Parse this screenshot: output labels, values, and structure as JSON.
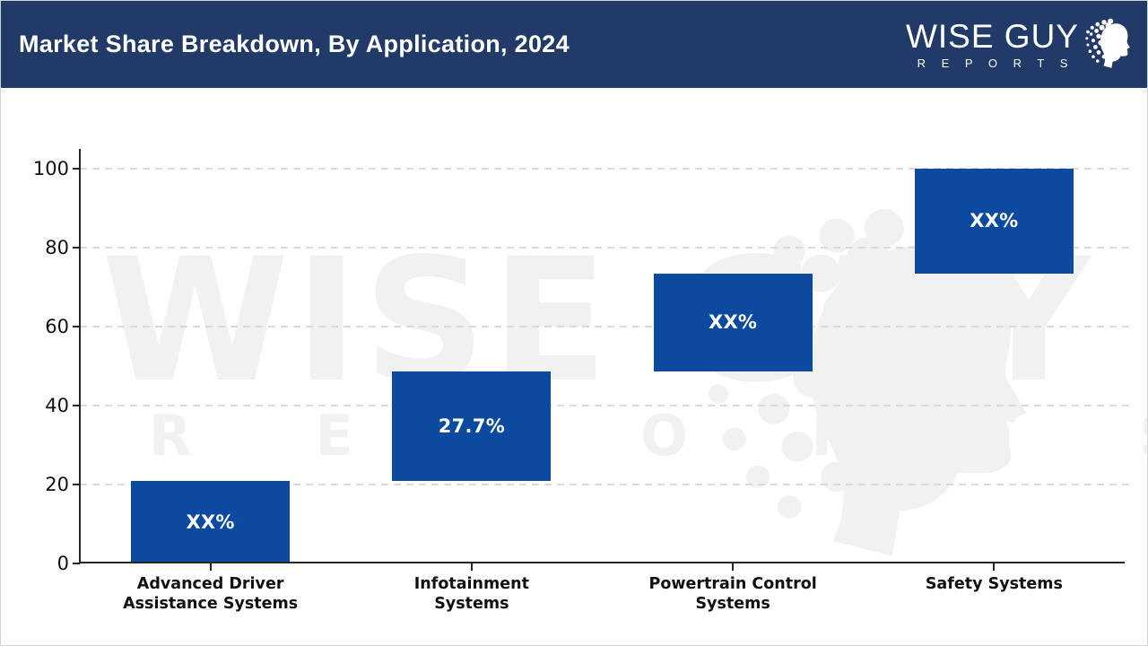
{
  "header": {
    "title": "Market Share Breakdown, By Application, 2024",
    "logo": {
      "name": "WISE GUY",
      "subname": "R E P O R T S",
      "icon": "dotted-head-profile-icon"
    }
  },
  "watermark": {
    "text": "WISE GUY",
    "subtext": "R E P O R T S",
    "icon": "dotted-head-profile-watermark"
  },
  "colors": {
    "header_bg": "#213A67",
    "header_text": "#FFFFFF",
    "bar": "#0B4A9F",
    "bar_label": "#FFFFFF",
    "grid": "#D9D9D9",
    "axis": "#262626",
    "tick_label": "#111111",
    "watermark": "#F1F1F1"
  },
  "chart_data": {
    "type": "bar",
    "subtype": "waterfall",
    "title": "Market Share Breakdown, By Application, 2024",
    "xlabel": "",
    "ylabel": "",
    "categories": [
      "Advanced Driver Assistance Systems",
      "Infotainment Systems",
      "Powertrain Control Systems",
      "Safety Systems"
    ],
    "category_lines": [
      [
        "Advanced Driver",
        "Assistance Systems"
      ],
      [
        "Infotainment",
        "Systems"
      ],
      [
        "Powertrain Control",
        "Systems"
      ],
      [
        "Safety Systems"
      ]
    ],
    "segments": [
      {
        "start": 0,
        "end": 21.0,
        "value_label": "XX%"
      },
      {
        "start": 21.0,
        "end": 48.7,
        "value_label": "27.7%"
      },
      {
        "start": 48.7,
        "end": 73.5,
        "value_label": "XX%"
      },
      {
        "start": 73.5,
        "end": 100.0,
        "value_label": "XX%"
      }
    ],
    "values": [
      21.0,
      27.7,
      24.8,
      26.5
    ],
    "yticks": [
      0,
      20,
      40,
      60,
      80,
      100
    ],
    "ylim": [
      0,
      105
    ],
    "grid": "dashed-horizontal",
    "legend": "none"
  }
}
